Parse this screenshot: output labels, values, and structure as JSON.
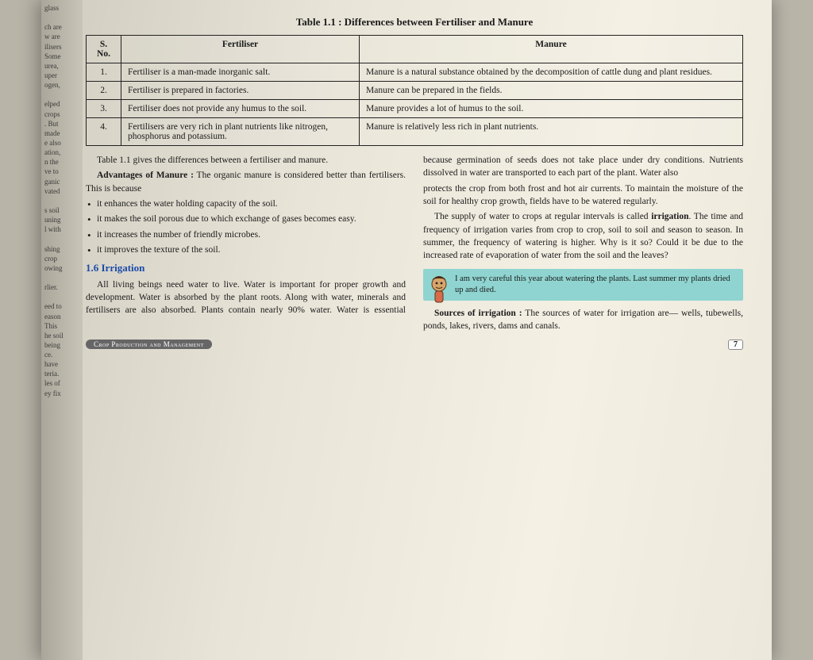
{
  "gutter_lines": [
    "glass",
    "",
    "ch are",
    "w are",
    "ilisers",
    "Some",
    "urea,",
    "uper",
    "ogen,",
    "",
    "elped",
    "crops",
    ". But",
    "made",
    "e also",
    "ation,",
    "n the",
    "ve to",
    "ganic",
    "vated",
    "",
    "s soil",
    "uning",
    "l with",
    "",
    "shing",
    "crop",
    "owing",
    "",
    "rlier.",
    "",
    "eed to",
    "eason",
    " This",
    "he soil",
    "being",
    "ce.",
    "have",
    "teria.",
    "les of",
    "ey fix"
  ],
  "table": {
    "caption": "Table 1.1 : Differences between Fertiliser and Manure",
    "headers": [
      "S. No.",
      "Fertiliser",
      "Manure"
    ],
    "rows": [
      [
        "1.",
        "Fertiliser is a man-made inorganic salt.",
        "Manure is a natural substance obtained by the decomposition of cattle dung and plant residues."
      ],
      [
        "2.",
        "Fertiliser is prepared in factories.",
        "Manure can be prepared in the fields."
      ],
      [
        "3.",
        "Fertiliser does not provide any humus to the soil.",
        "Manure provides a lot of humus to the soil."
      ],
      [
        "4.",
        "Fertilisers are very rich in plant nutrients like nitrogen, phosphorus and potassium.",
        "Manure is relatively less rich in plant nutrients."
      ]
    ]
  },
  "body": {
    "p1": "Table 1.1 gives the differences between a fertiliser and manure.",
    "adv_label": "Advantages of Manure :",
    "adv_text": " The organic manure is considered better than fertilisers. This is because",
    "bullets": [
      "it enhances the water holding capacity of the soil.",
      "it makes the soil porous due to which exchange of gases becomes easy.",
      "it increases the number of friendly microbes.",
      "it improves the texture of the soil."
    ],
    "sec_title": "1.6 Irrigation",
    "p2": "All living beings need water to live. Water is important for proper growth and development. Water is absorbed by the plant roots. Along with water, minerals and fertilisers are also absorbed. Plants contain nearly 90% water. Water is essential because germination of seeds does not take place under dry conditions. Nutrients dissolved in water are transported to each part of the plant. Water also",
    "p3": "protects the crop from both frost and hot air currents. To maintain the moisture of the soil for healthy crop growth, fields have to be watered regularly.",
    "p4a": "The supply of water to crops at regular intervals is called ",
    "p4b": "irrigation",
    "p4c": ". The time and frequency of irrigation varies from crop to crop, soil to soil and season to season. In summer, the frequency of watering is higher. Why is it so? Could it be due to the increased rate of evaporation of water from the soil and the leaves?",
    "callout": "I am very careful this year about watering the plants. Last summer my plants dried up and died.",
    "src_label": "Sources of irrigation :",
    "src_text": " The sources of water for irrigation are— wells, tubewells, ponds, lakes, rivers, dams and canals."
  },
  "footer": {
    "tag": "Crop Production and Management",
    "page": "7"
  },
  "colors": {
    "heading": "#1a4aa8",
    "callout_bg": "#8fd4d0",
    "border": "#222222"
  }
}
